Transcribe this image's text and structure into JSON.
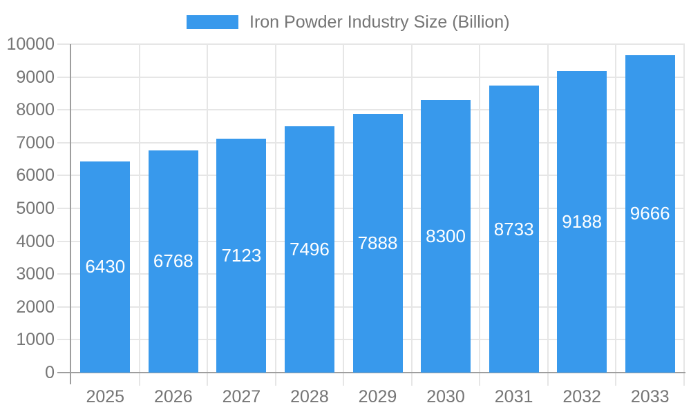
{
  "chart_data": {
    "type": "bar",
    "title": "Iron Powder Industry Size (Billion)",
    "legend": {
      "position": "top-center",
      "entries": [
        "Iron Powder Industry Size (Billion)"
      ]
    },
    "categories": [
      "2025",
      "2026",
      "2027",
      "2028",
      "2029",
      "2030",
      "2031",
      "2032",
      "2033"
    ],
    "series": [
      {
        "name": "Iron Powder Industry Size (Billion)",
        "values": [
          6430,
          6768,
          7123,
          7496,
          7888,
          8300,
          8733,
          9188,
          9666
        ]
      }
    ],
    "value_labels": [
      "6430",
      "6768",
      "7123",
      "7496",
      "7888",
      "8300",
      "8733",
      "9188",
      "9666"
    ],
    "value_label_position": "inside-center",
    "xlabel": "",
    "ylabel": "",
    "ylim": [
      0,
      10000
    ],
    "ytick_step": 1000,
    "ytick_labels": [
      "0",
      "1000",
      "2000",
      "3000",
      "4000",
      "5000",
      "6000",
      "7000",
      "8000",
      "9000",
      "10000"
    ],
    "grid": true,
    "colors": {
      "bar": "#3899EC",
      "grid": "#E6E6E6",
      "axis": "#9E9E9E",
      "tick_text": "#757575",
      "legend_text": "#757575",
      "value_text": "#FFFFFF",
      "background": "#FFFFFF"
    }
  }
}
